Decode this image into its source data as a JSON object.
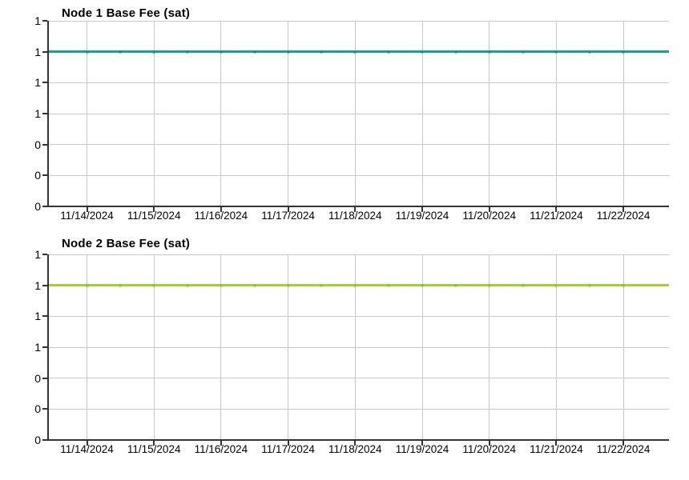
{
  "page": {
    "background": "#ffffff"
  },
  "chart_data": [
    {
      "type": "line",
      "title": "Node 1 Base Fee (sat)",
      "x": [
        "11/14/2024",
        "11/15/2024",
        "11/16/2024",
        "11/17/2024",
        "11/18/2024",
        "11/19/2024",
        "11/20/2024",
        "11/21/2024",
        "11/22/2024"
      ],
      "series": [
        {
          "name": "Node 1 Base Fee (sat)",
          "values": [
            1,
            1,
            1,
            1,
            1,
            1,
            1,
            1,
            1
          ]
        }
      ],
      "xlabel": "",
      "ylabel": "",
      "ylim": [
        0,
        1.2
      ],
      "yticks": {
        "values": [
          1.2,
          1.0,
          0.8,
          0.6,
          0.4,
          0.2,
          0
        ],
        "labels": [
          "1",
          "1",
          "1",
          "1",
          "0",
          "0",
          "0"
        ]
      },
      "grid": true,
      "legend_position": "none",
      "line_color": "#1b9e9e",
      "marker_color": "#0e8585",
      "grid_color": "#c9c9c9",
      "axis_color": "#333333",
      "text_color": "#000000"
    },
    {
      "type": "line",
      "title": "Node 2 Base Fee (sat)",
      "x": [
        "11/14/2024",
        "11/15/2024",
        "11/16/2024",
        "11/17/2024",
        "11/18/2024",
        "11/19/2024",
        "11/20/2024",
        "11/21/2024",
        "11/22/2024"
      ],
      "series": [
        {
          "name": "Node 2 Base Fee (sat)",
          "values": [
            1,
            1,
            1,
            1,
            1,
            1,
            1,
            1,
            1
          ]
        }
      ],
      "xlabel": "",
      "ylabel": "",
      "ylim": [
        0,
        1.2
      ],
      "yticks": {
        "values": [
          1.2,
          1.0,
          0.8,
          0.6,
          0.4,
          0.2,
          0
        ],
        "labels": [
          "1",
          "1",
          "1",
          "1",
          "0",
          "0",
          "0"
        ]
      },
      "grid": true,
      "legend_position": "none",
      "line_color": "#a4cf39",
      "marker_color": "#8ab82d",
      "grid_color": "#c9c9c9",
      "axis_color": "#333333",
      "text_color": "#000000"
    }
  ]
}
